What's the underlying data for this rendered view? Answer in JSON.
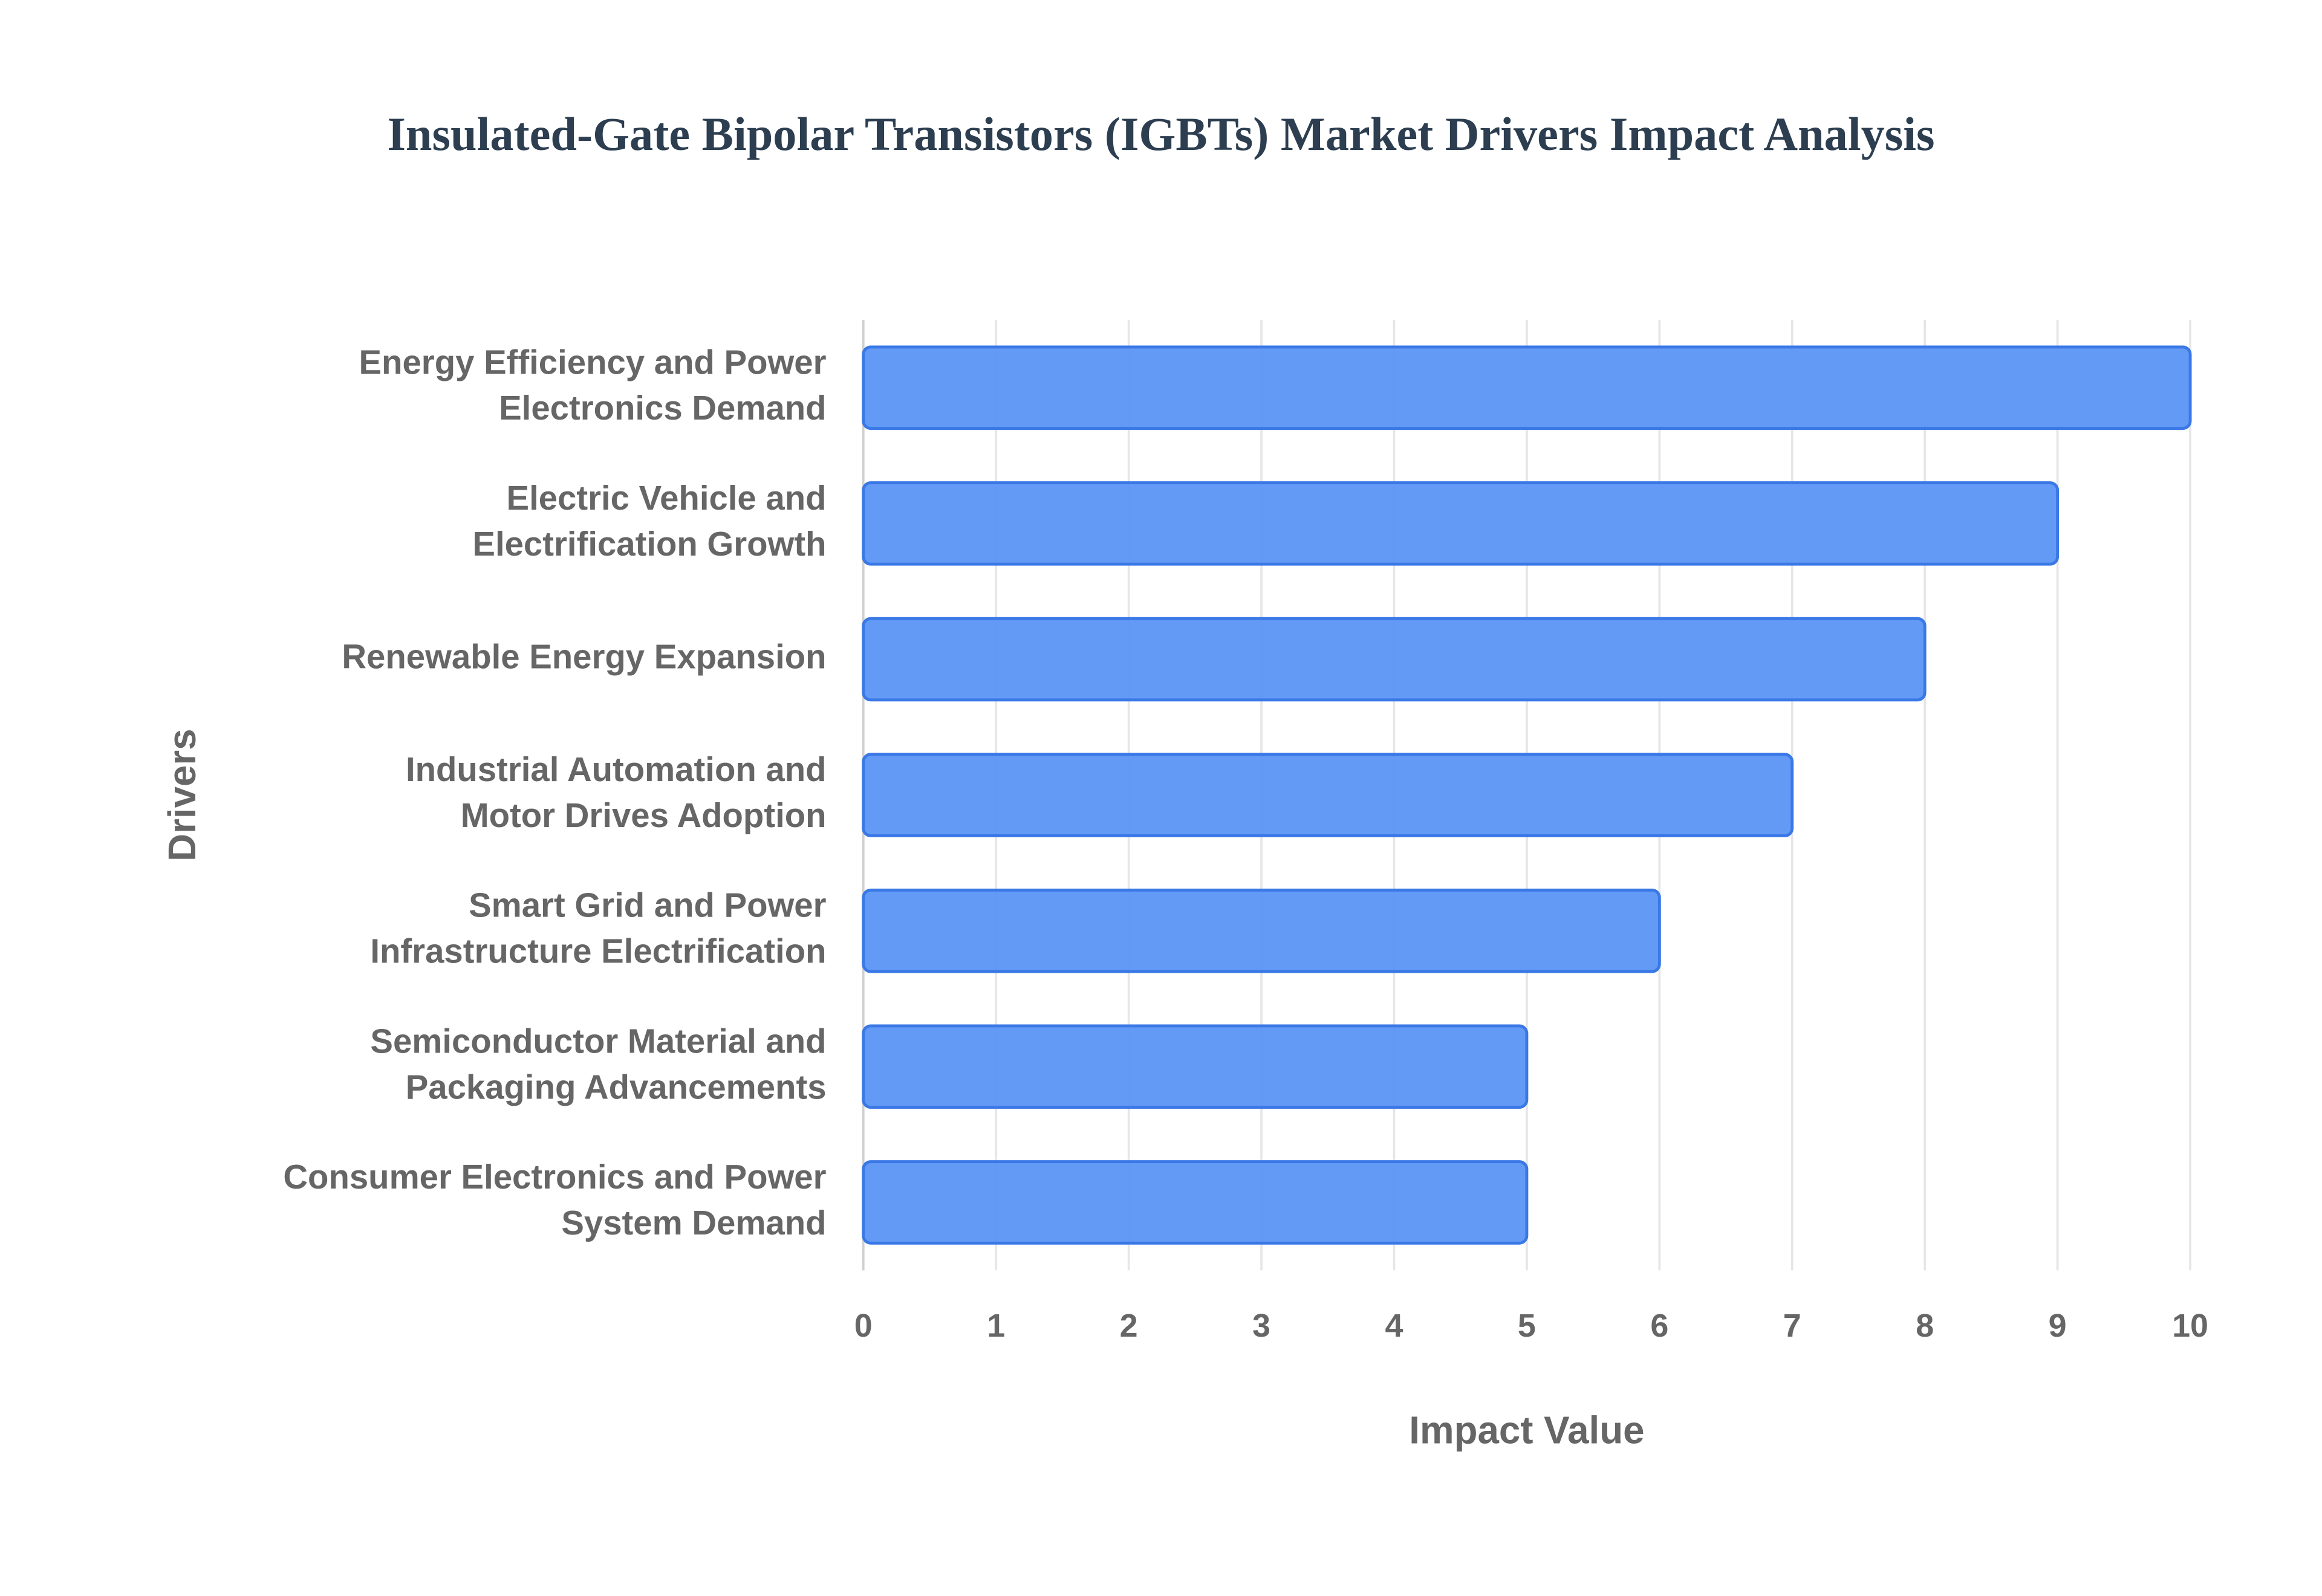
{
  "chart_data": {
    "type": "bar",
    "orientation": "horizontal",
    "title": "Insulated-Gate Bipolar Transistors (IGBTs) Market Drivers Impact Analysis",
    "x_label": "Impact Value",
    "y_label": "Drivers",
    "categories": [
      "Energy Efficiency and Power Electronics Demand",
      "Electric Vehicle and Electrification Growth",
      "Renewable Energy Expansion",
      "Industrial Automation and Motor Drives Adoption",
      "Smart Grid and Power Infrastructure Electrification",
      "Semiconductor Material and Packaging Advancements",
      "Consumer Electronics and Power System Demand"
    ],
    "values": [
      10,
      9,
      8,
      7,
      6,
      5,
      5
    ],
    "color": "#5b95f5",
    "xlim": [
      0,
      10
    ],
    "xticks": [
      0,
      1,
      2,
      3,
      4,
      5,
      6,
      7,
      8,
      9,
      10
    ],
    "grid": true
  }
}
